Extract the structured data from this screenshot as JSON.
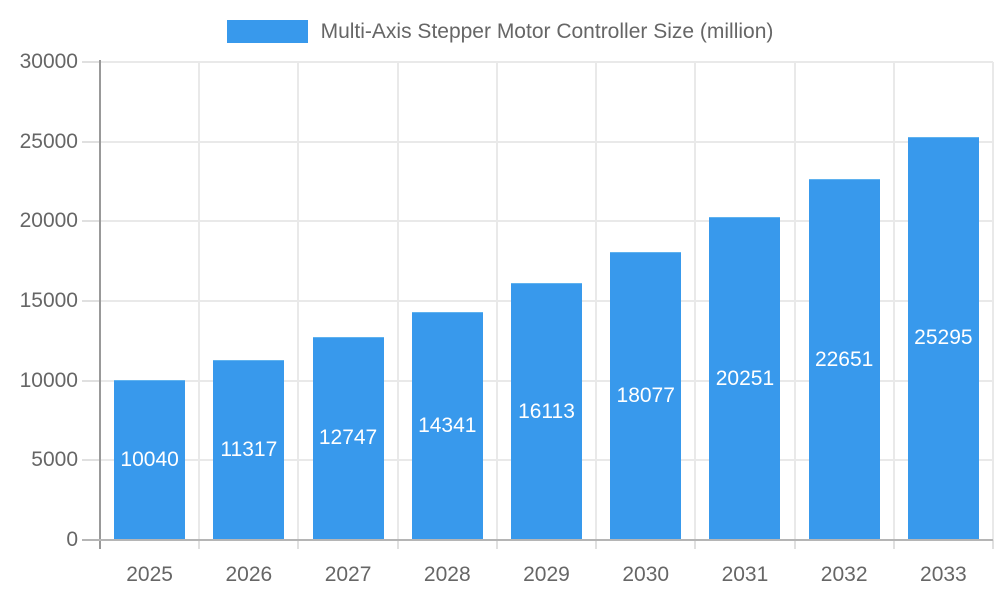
{
  "chart_data": {
    "type": "bar",
    "legend": "Multi-Axis Stepper Motor Controller Size (million)",
    "categories": [
      "2025",
      "2026",
      "2027",
      "2028",
      "2029",
      "2030",
      "2031",
      "2032",
      "2033"
    ],
    "series": [
      {
        "name": "Multi-Axis Stepper Motor Controller Size (million)",
        "values": [
          10040,
          11317,
          12747,
          14341,
          16113,
          18077,
          20251,
          22651,
          25295
        ]
      }
    ],
    "xlabel": "",
    "ylabel": "",
    "ylim": [
      0,
      30000
    ],
    "ytick_step": 5000,
    "ytick_labels": [
      "0",
      "5000",
      "10000",
      "15000",
      "20000",
      "25000",
      "30000"
    ],
    "grid": "horizontal and vertical category boundaries",
    "legend_position": "top-center",
    "bar_label_position": "inside-middle",
    "colors": {
      "bar": "#3899EC",
      "bar_border": "#5FB2EF",
      "bar_label": "#FFFFFF",
      "legend_text": "#666666",
      "axis_label": "#666666",
      "grid_line": "#E9E9E9",
      "tick_line": "#E0E0E0",
      "y_axis_line": "#999999",
      "x_axis_line": "#B5B5B5",
      "background": "#FFFFFF"
    }
  }
}
